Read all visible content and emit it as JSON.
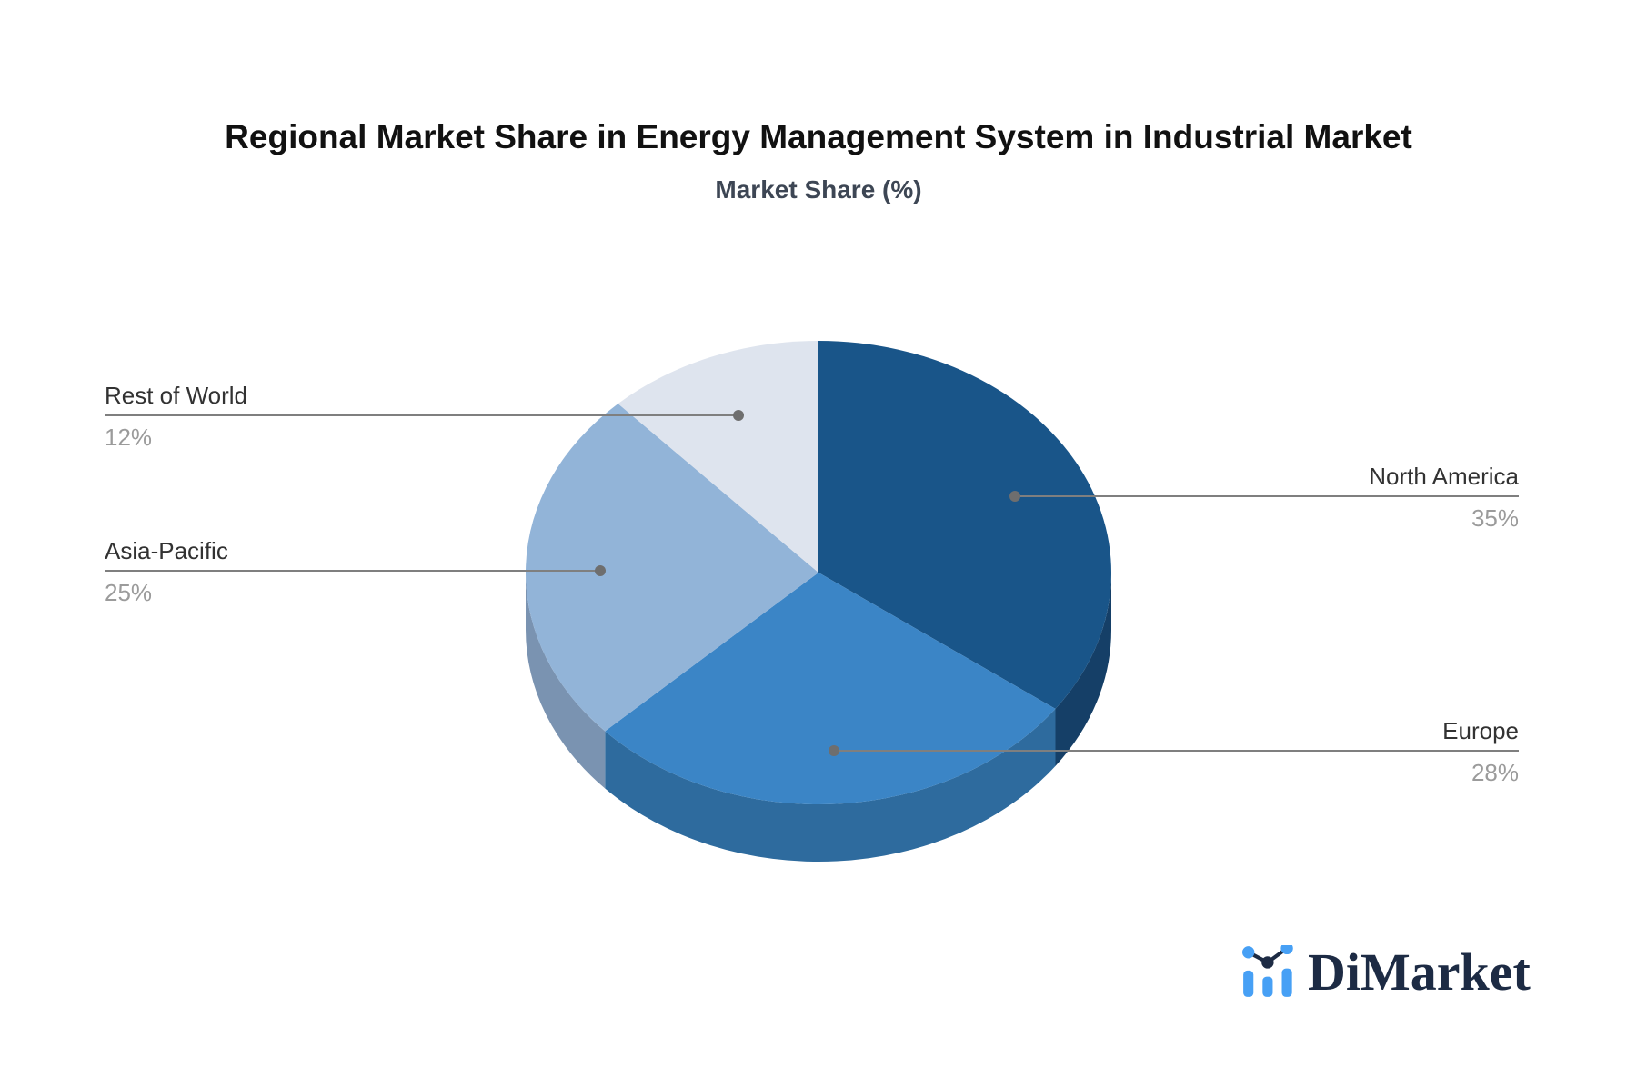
{
  "title": "Regional Market Share in Energy Management System in Industrial Market",
  "subtitle": "Market Share (%)",
  "logo": {
    "text": "DiMarket"
  },
  "colors": {
    "leader_line": "#7f7f7f",
    "label_text": "#323232",
    "value_text": "#9b9b9b",
    "logo_navy": "#1d2b44",
    "logo_blue": "#47a0f5"
  },
  "chart_data": {
    "type": "pie",
    "style": "3d",
    "title": "Regional Market Share in Energy Management System in Industrial Market",
    "subtitle": "Market Share (%)",
    "unit": "%",
    "start_angle_deg": 0,
    "direction": "clockwise",
    "legend_position": "none",
    "slices": [
      {
        "label": "North America",
        "value": 35,
        "display": "35%",
        "color": "#195589",
        "side_color": "#153f67",
        "label_side": "right"
      },
      {
        "label": "Europe",
        "value": 28,
        "display": "28%",
        "color": "#3b85c6",
        "side_color": "#2e6b9e",
        "label_side": "right"
      },
      {
        "label": "Asia-Pacific",
        "value": 25,
        "display": "25%",
        "color": "#92b4d8",
        "side_color": "#7a93b1",
        "label_side": "left"
      },
      {
        "label": "Rest of World",
        "value": 12,
        "display": "12%",
        "color": "#dee4ee",
        "side_color": "#c3cddc",
        "label_side": "left"
      }
    ]
  }
}
